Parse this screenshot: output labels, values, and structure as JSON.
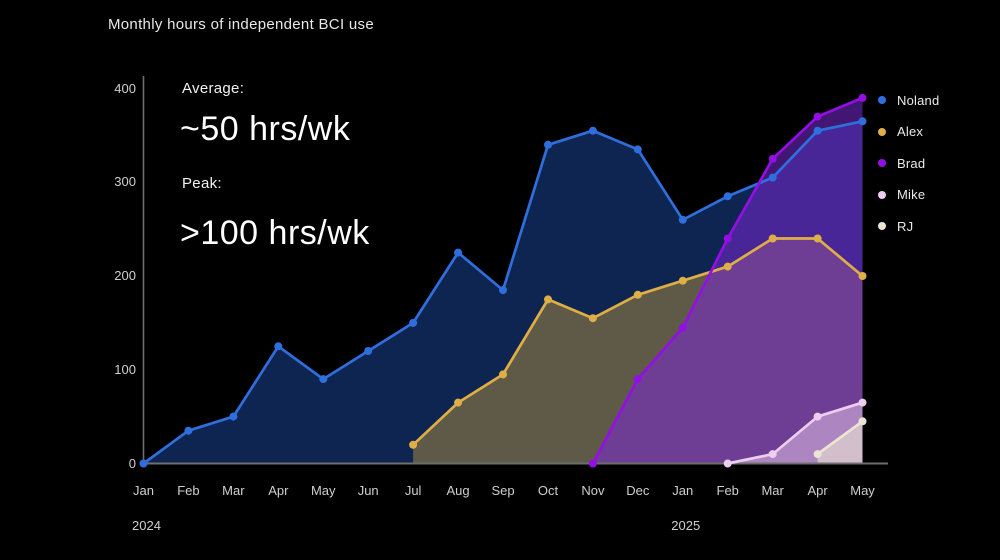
{
  "title": "Monthly hours of independent BCI use",
  "annotations": {
    "average_label": "Average:",
    "average_value": "~50 hrs/wk",
    "peak_label": "Peak:",
    "peak_value": ">100 hrs/wk"
  },
  "colors": {
    "background": "#000000",
    "axis_line": "#6e6e6e",
    "tick_text": "#cfcfcf",
    "title_text": "#e8e8e8",
    "annotation_text": "#ffffff"
  },
  "chart_data": {
    "type": "area",
    "title": "Monthly hours of independent BCI use",
    "xlabel": "",
    "ylabel": "",
    "ylim": [
      0,
      400
    ],
    "y_ticks": [
      0,
      100,
      200,
      300,
      400
    ],
    "grid": false,
    "legend_position": "right",
    "x_categories": [
      "Jan",
      "Feb",
      "Mar",
      "Apr",
      "May",
      "Jun",
      "Jul",
      "Aug",
      "Sep",
      "Oct",
      "Nov",
      "Dec",
      "Jan",
      "Feb",
      "Mar",
      "Apr",
      "May"
    ],
    "year_labels": [
      {
        "text": "2024",
        "index": 0
      },
      {
        "text": "2025",
        "index": 12
      }
    ],
    "series": [
      {
        "name": "Noland",
        "color": "#2f6fdd",
        "fill_rgba": "rgba(30,80,180,0.45)",
        "start_index": 0,
        "values": [
          0,
          35,
          50,
          125,
          90,
          120,
          150,
          225,
          185,
          340,
          355,
          335,
          260,
          285,
          305,
          355,
          365
        ]
      },
      {
        "name": "Alex",
        "color": "#dfaf45",
        "fill_rgba": "rgba(218,171,58,0.4)",
        "start_index": 6,
        "values": [
          20,
          65,
          95,
          175,
          155,
          180,
          195,
          210,
          240,
          240,
          200
        ]
      },
      {
        "name": "Brad",
        "color": "#930fe3",
        "fill_rgba": "rgba(120,40,210,0.55)",
        "start_index": 10,
        "values": [
          0,
          90,
          145,
          240,
          325,
          370,
          390
        ]
      },
      {
        "name": "Mike",
        "color": "#edcdf0",
        "fill_rgba": "rgba(237,205,240,0.5)",
        "start_index": 13,
        "values": [
          0,
          10,
          50,
          65
        ]
      },
      {
        "name": "RJ",
        "color": "#ebe5d3",
        "fill_rgba": "rgba(236,229,210,0.6)",
        "start_index": 15,
        "values": [
          10,
          45
        ]
      }
    ]
  }
}
